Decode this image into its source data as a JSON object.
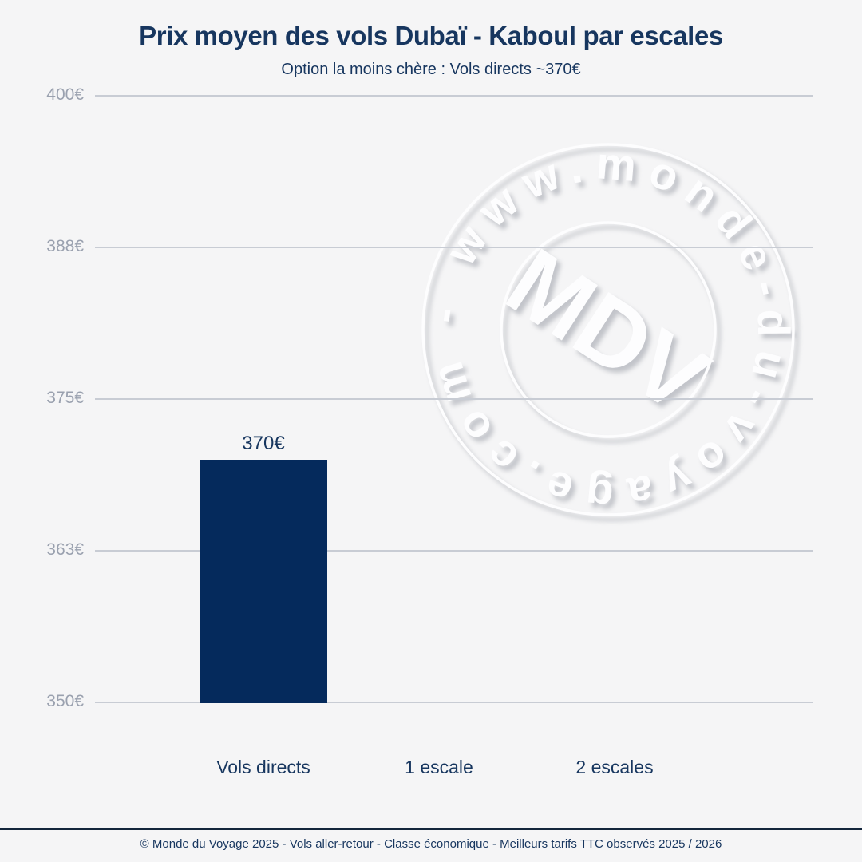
{
  "page": {
    "background": "#f5f5f6"
  },
  "chart_data": {
    "type": "bar",
    "title": "Prix moyen des vols Dubaï - Kaboul par escales",
    "subtitle": "Option la moins chère : Vols directs ~370€",
    "categories": [
      "Vols directs",
      "1 escale",
      "2 escales"
    ],
    "values": [
      370,
      null,
      null
    ],
    "bar_value_labels": [
      "370€",
      null,
      null
    ],
    "xlabel": "",
    "ylabel": "",
    "ylim": [
      350,
      400
    ],
    "yticks": [
      {
        "value": 400,
        "label": "400€"
      },
      {
        "value": 387.5,
        "label": "388€"
      },
      {
        "value": 375,
        "label": "375€"
      },
      {
        "value": 362.5,
        "label": "363€"
      },
      {
        "value": 350,
        "label": "350€"
      }
    ],
    "grid": true,
    "legend": false,
    "colors": {
      "bar": "#052a5c",
      "navy_text": "#17365f",
      "tick_label": "#9aa1af",
      "gridline": "#c8ccd4",
      "footer_rule": "#13263c",
      "background": "#f5f5f6"
    }
  },
  "watermark": {
    "ring_text": "www.monde-du-voyage.com -",
    "center_text": "MDV"
  },
  "footer": {
    "text": "© Monde du Voyage 2025 - Vols aller-retour - Classe économique - Meilleurs tarifs TTC observés 2025 / 2026"
  }
}
